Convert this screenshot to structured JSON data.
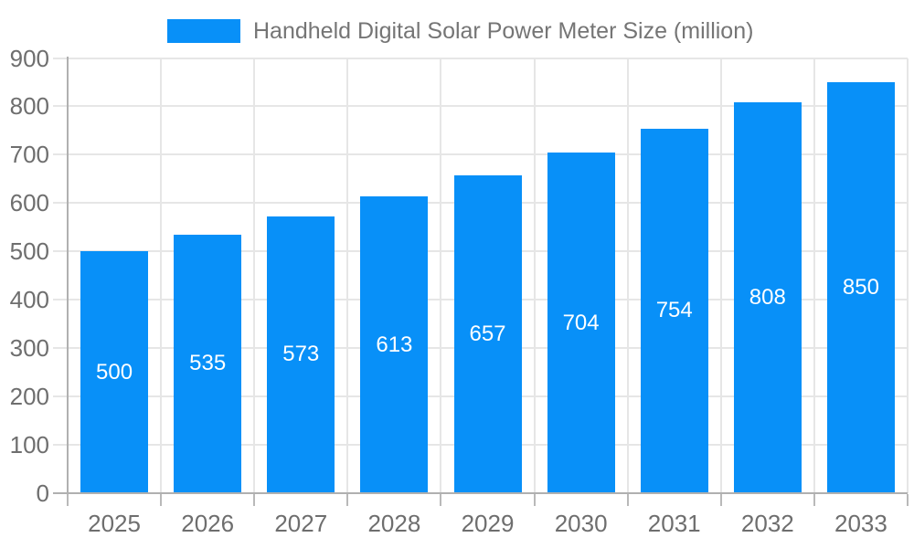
{
  "legend": {
    "label": "Handheld Digital Solar Power Meter Size (million)"
  },
  "chart_data": {
    "type": "bar",
    "title": "Handheld Digital Solar Power Meter Size (million)",
    "categories": [
      "2025",
      "2026",
      "2027",
      "2028",
      "2029",
      "2030",
      "2031",
      "2032",
      "2033"
    ],
    "values": [
      500,
      535,
      573,
      613,
      657,
      704,
      754,
      808,
      850
    ],
    "series": [
      {
        "name": "Handheld Digital Solar Power Meter Size (million)",
        "values": [
          500,
          535,
          573,
          613,
          657,
          704,
          754,
          808,
          850
        ]
      }
    ],
    "xlabel": "",
    "ylabel": "",
    "ylim": [
      0,
      900
    ],
    "ytick_step": 100,
    "yticks": [
      0,
      100,
      200,
      300,
      400,
      500,
      600,
      700,
      800,
      900
    ],
    "grid": true,
    "grid_vertical": true,
    "legend_position": "top-center",
    "bar_labels_inside": true,
    "colors": {
      "bar": "#0890f8",
      "bar_label": "#ffffff",
      "axis_text": "#6e6e6e",
      "legend_text": "#757575",
      "gridline": "#e6e6e6",
      "axis_line": "#b0b0b0",
      "tick": "#b9b9b9"
    }
  }
}
